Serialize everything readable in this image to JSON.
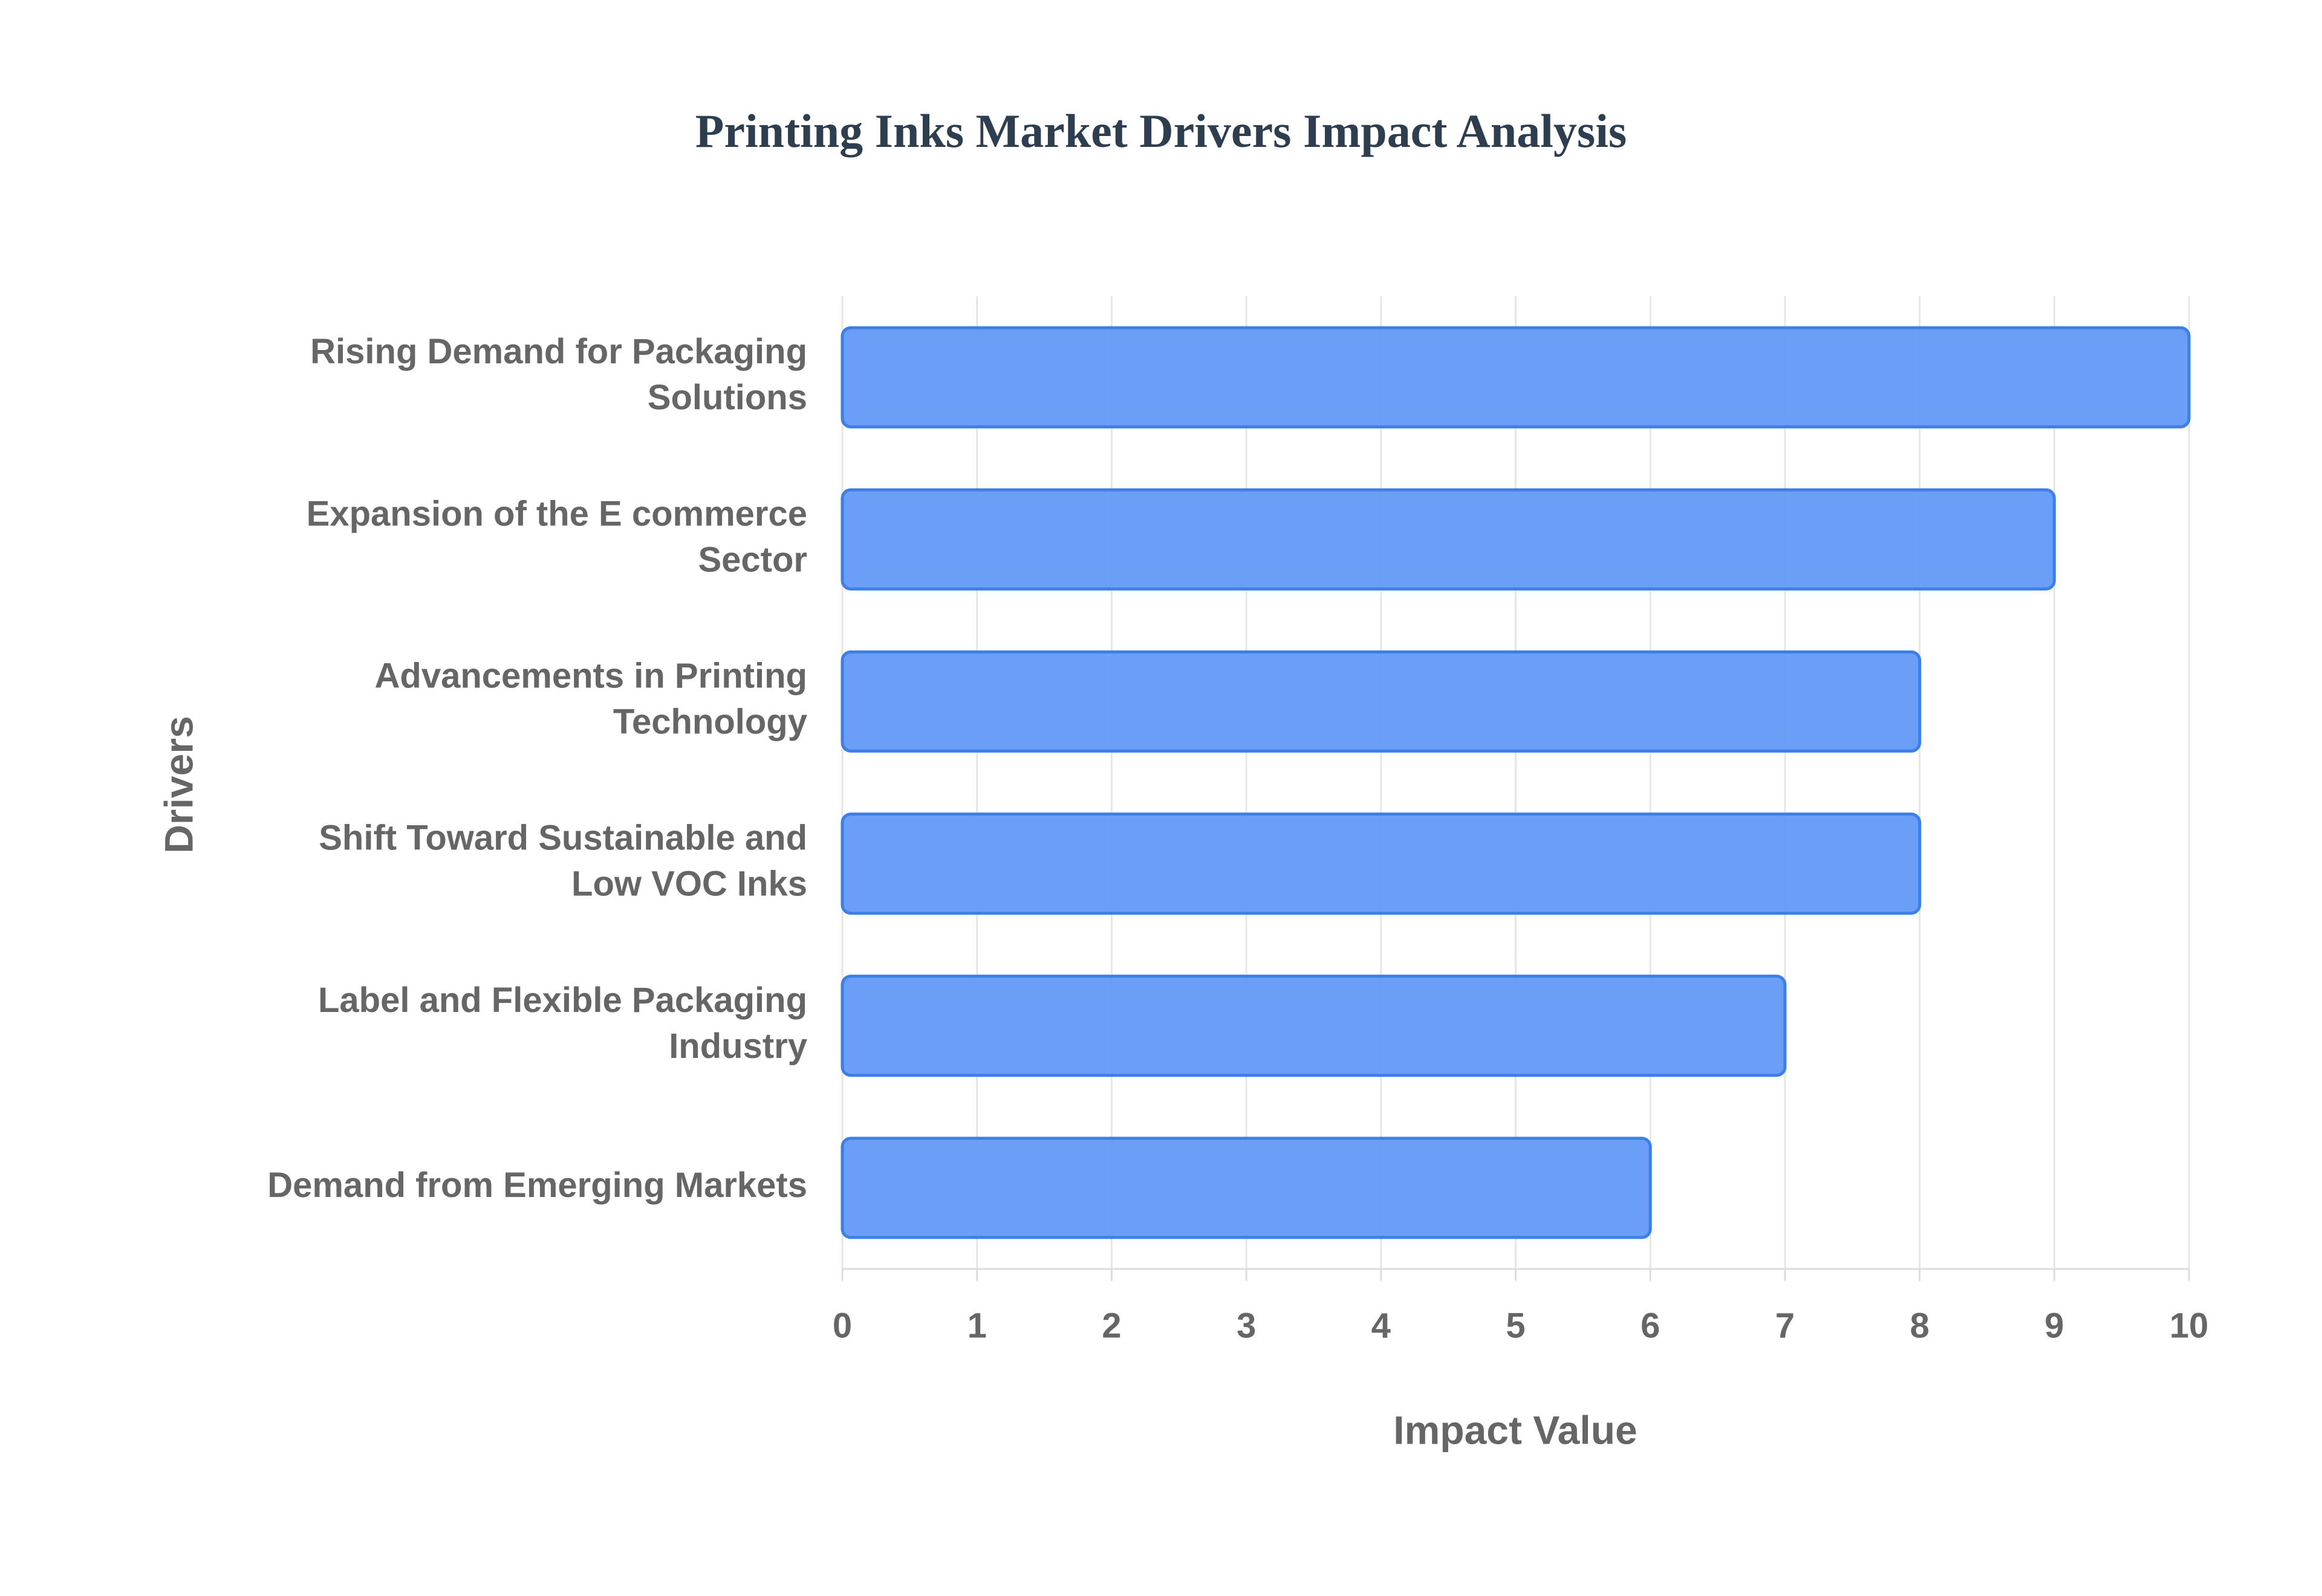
{
  "chart_data": {
    "type": "bar",
    "orientation": "horizontal",
    "title": "Printing Inks Market Drivers Impact Analysis",
    "x_label": "Impact Value",
    "y_label": "Drivers",
    "categories": [
      "Rising Demand for Packaging Solutions",
      "Expansion of the E commerce Sector",
      "Advancements in Printing Technology",
      "Shift Toward Sustainable and Low VOC Inks",
      "Label and Flexible Packaging Industry",
      "Demand from Emerging Markets"
    ],
    "values": [
      10,
      9,
      8,
      8,
      7,
      6
    ],
    "color": "#6399f5",
    "xlim": [
      0,
      10
    ],
    "xticks": [
      0,
      1,
      2,
      3,
      4,
      5,
      6,
      7,
      8,
      9,
      10
    ],
    "grid": true
  }
}
